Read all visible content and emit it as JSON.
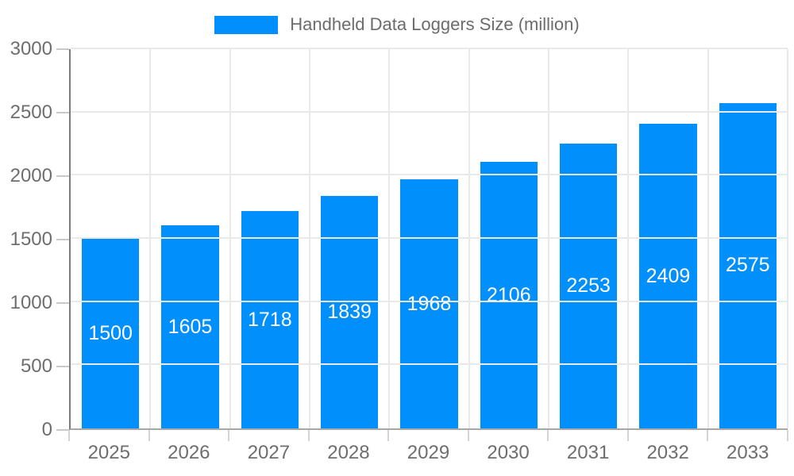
{
  "legend": {
    "position": "top"
  },
  "chart_data": {
    "type": "bar",
    "series_name": "Handheld Data Loggers Size (million)",
    "categories": [
      "2025",
      "2026",
      "2027",
      "2028",
      "2029",
      "2030",
      "2031",
      "2032",
      "2033"
    ],
    "values": [
      1500,
      1605,
      1718,
      1839,
      1968,
      2106,
      2253,
      2409,
      2575
    ],
    "title": "",
    "xlabel": "",
    "ylabel": "",
    "ylim": [
      0,
      3000
    ],
    "yticks": [
      0,
      500,
      1000,
      1500,
      2000,
      2500,
      3000
    ],
    "grid": true,
    "legend_position": "top",
    "bar_color": "#008FFB",
    "bar_label_color": "#ffffff",
    "axis_label_color": "#6e6e6e",
    "grid_color": "#e9e9e9"
  }
}
